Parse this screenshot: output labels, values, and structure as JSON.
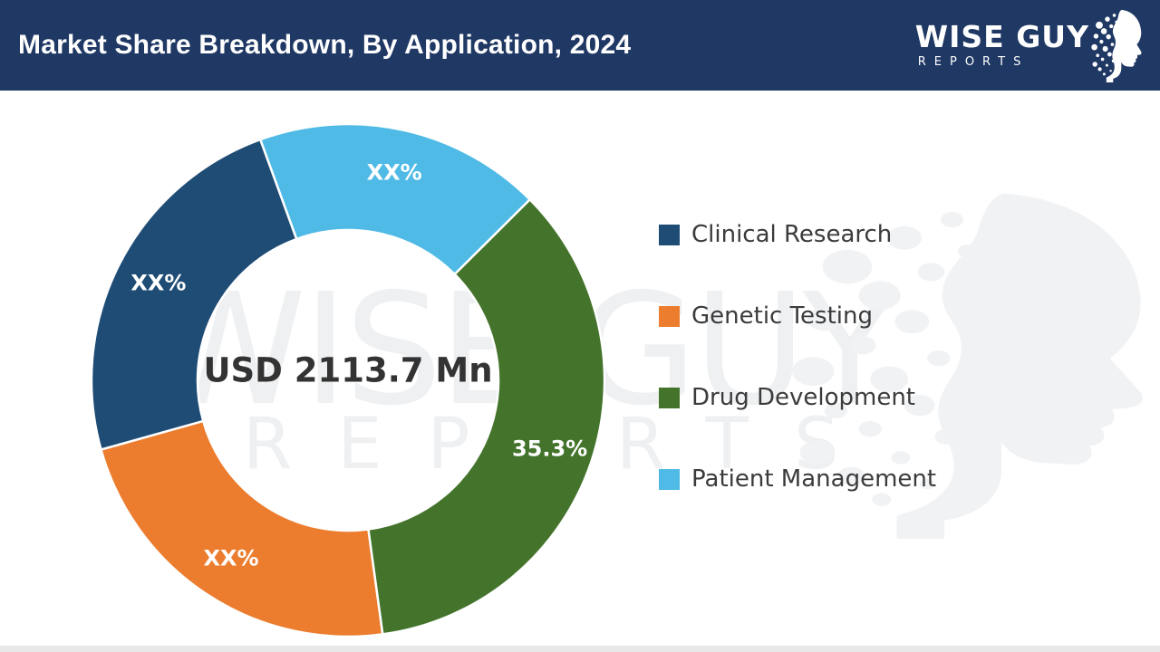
{
  "header": {
    "title": "Market Share Breakdown, By Application, 2024",
    "background_color": "#1f3864"
  },
  "brand": {
    "line1": "WISE GUY",
    "line2": "REPORTS"
  },
  "watermark": {
    "line1": "WISE GUY",
    "line2": "REPORTS"
  },
  "chart_data": {
    "type": "pie",
    "variant": "donut",
    "title": "Market Share Breakdown, By Application, 2024",
    "center_label": "USD 2113.7 Mn",
    "start_angle_deg": -20,
    "segments": [
      {
        "label": "Patient Management",
        "pct": 18.1,
        "display": "XX%",
        "color": "#4fbae5"
      },
      {
        "label": "Drug Development",
        "pct": 35.3,
        "display": "35.3%",
        "color": "#44742c"
      },
      {
        "label": "Genetic Testing",
        "pct": 22.8,
        "display": "XX%",
        "color": "#ec7d2f"
      },
      {
        "label": "Clinical Research",
        "pct": 23.8,
        "display": "XX%",
        "color": "#1f4c75"
      }
    ],
    "legend_order": [
      "Clinical Research",
      "Genetic Testing",
      "Drug Development",
      "Patient Management"
    ],
    "legend_position": "right"
  }
}
